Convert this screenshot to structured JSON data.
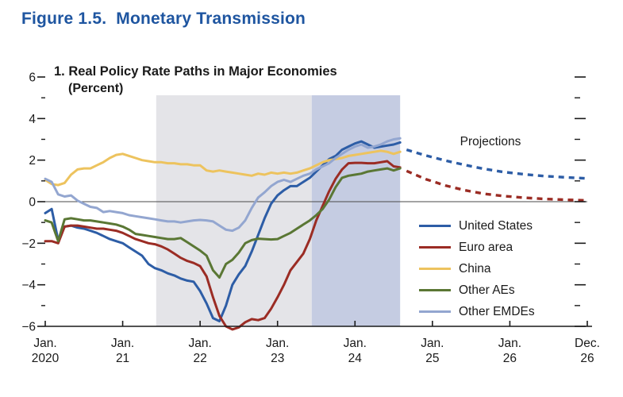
{
  "figure_title": "Figure 1.5.  Monetary Transmission",
  "panel": {
    "title": "1. Real Policy Rate Paths in Major Economies",
    "subtitle": "(Percent)"
  },
  "annotations": {
    "projections": "Projections"
  },
  "colors": {
    "figure_title": "#1e55a0",
    "text": "#1a1a1a",
    "axis": "#1a1a1a",
    "zero_line": "#4a4a4a",
    "band_gray": "#e4e4e8",
    "band_blue": "#c5cce2",
    "united_states": "#2d5da6",
    "euro_area": "#9b2c24",
    "china": "#edc35e",
    "other_aes": "#5a7734",
    "other_emdes": "#93a6d0"
  },
  "chart_data": {
    "type": "line",
    "title": "1. Real Policy Rate Paths in Major Economies",
    "ylabel": "Percent",
    "ylim": [
      -6,
      6
    ],
    "grid": false,
    "zero_line": true,
    "legend_position": "lower right",
    "y_major_ticks": [
      6,
      4,
      2,
      0,
      -2,
      -4,
      -6
    ],
    "y_minor_ticks": [
      5,
      3,
      1,
      -1,
      -3,
      -5
    ],
    "x_tick_labels": [
      [
        "Jan.",
        "2020"
      ],
      [
        "Jan.",
        "21"
      ],
      [
        "Jan.",
        "22"
      ],
      [
        "Jan.",
        "23"
      ],
      [
        "Jan.",
        "24"
      ],
      [
        "Jan.",
        "25"
      ],
      [
        "Jan.",
        "26"
      ],
      [
        "Dec.",
        "26"
      ]
    ],
    "x_months_span": 83,
    "shaded_bands": [
      {
        "from_month": 17.2,
        "to_month": 41.3,
        "color_key": "band_gray"
      },
      {
        "from_month": 41.3,
        "to_month": 55.0,
        "color_key": "band_blue"
      }
    ],
    "series": [
      {
        "name": "United States",
        "color_key": "united_states",
        "style": "solid",
        "start_month": 0,
        "values": [
          -0.55,
          -0.35,
          -1.85,
          -1.2,
          -1.15,
          -1.25,
          -1.3,
          -1.4,
          -1.5,
          -1.65,
          -1.8,
          -1.9,
          -2.0,
          -2.2,
          -2.4,
          -2.6,
          -3.0,
          -3.2,
          -3.3,
          -3.45,
          -3.55,
          -3.7,
          -3.8,
          -3.85,
          -4.3,
          -4.9,
          -5.6,
          -5.75,
          -5.0,
          -4.0,
          -3.5,
          -3.1,
          -2.4,
          -1.6,
          -0.8,
          -0.1,
          0.3,
          0.55,
          0.75,
          0.75,
          0.95,
          1.15,
          1.45,
          1.75,
          2.05,
          2.2,
          2.5,
          2.65,
          2.8,
          2.9,
          2.75,
          2.6,
          2.65,
          2.7,
          2.75,
          2.85
        ]
      },
      {
        "name": "Euro area",
        "color_key": "euro_area",
        "style": "solid",
        "start_month": 0,
        "values": [
          -1.9,
          -1.9,
          -2.0,
          -1.2,
          -1.15,
          -1.15,
          -1.2,
          -1.25,
          -1.3,
          -1.3,
          -1.35,
          -1.4,
          -1.5,
          -1.65,
          -1.8,
          -1.9,
          -2.0,
          -2.05,
          -2.15,
          -2.3,
          -2.5,
          -2.7,
          -2.85,
          -2.95,
          -3.1,
          -3.6,
          -4.6,
          -5.5,
          -6.0,
          -6.15,
          -6.05,
          -5.8,
          -5.65,
          -5.7,
          -5.6,
          -5.15,
          -4.6,
          -4.0,
          -3.3,
          -2.9,
          -2.5,
          -1.8,
          -0.9,
          -0.2,
          0.5,
          1.1,
          1.55,
          1.85,
          1.87,
          1.87,
          1.85,
          1.85,
          1.9,
          1.95,
          1.7,
          1.65
        ]
      },
      {
        "name": "China",
        "color_key": "china",
        "style": "solid",
        "start_month": 0,
        "values": [
          1.05,
          0.85,
          0.8,
          0.9,
          1.3,
          1.55,
          1.6,
          1.6,
          1.75,
          1.9,
          2.1,
          2.25,
          2.3,
          2.2,
          2.1,
          2.0,
          1.95,
          1.9,
          1.9,
          1.85,
          1.85,
          1.8,
          1.8,
          1.75,
          1.75,
          1.5,
          1.45,
          1.5,
          1.45,
          1.4,
          1.35,
          1.3,
          1.25,
          1.35,
          1.3,
          1.4,
          1.35,
          1.4,
          1.35,
          1.4,
          1.5,
          1.6,
          1.75,
          1.9,
          2.0,
          2.05,
          2.1,
          2.2,
          2.25,
          2.3,
          2.35,
          2.4,
          2.45,
          2.4,
          2.3,
          2.4
        ]
      },
      {
        "name": "Other AEs",
        "color_key": "other_aes",
        "style": "solid",
        "start_month": 0,
        "values": [
          -0.9,
          -1.0,
          -1.9,
          -0.85,
          -0.8,
          -0.85,
          -0.9,
          -0.9,
          -0.95,
          -1.0,
          -1.05,
          -1.1,
          -1.2,
          -1.35,
          -1.55,
          -1.6,
          -1.65,
          -1.7,
          -1.75,
          -1.8,
          -1.8,
          -1.75,
          -1.95,
          -2.15,
          -2.35,
          -2.6,
          -3.3,
          -3.65,
          -3.0,
          -2.8,
          -2.45,
          -2.0,
          -1.85,
          -1.78,
          -1.8,
          -1.82,
          -1.8,
          -1.65,
          -1.5,
          -1.3,
          -1.1,
          -0.9,
          -0.65,
          -0.35,
          0.1,
          0.7,
          1.15,
          1.25,
          1.3,
          1.35,
          1.45,
          1.5,
          1.55,
          1.6,
          1.5,
          1.6
        ]
      },
      {
        "name": "Other EMDEs",
        "color_key": "other_emdes",
        "style": "solid",
        "start_month": 0,
        "values": [
          1.1,
          0.95,
          0.35,
          0.25,
          0.3,
          0.05,
          -0.1,
          -0.25,
          -0.3,
          -0.5,
          -0.45,
          -0.5,
          -0.55,
          -0.65,
          -0.7,
          -0.75,
          -0.8,
          -0.85,
          -0.9,
          -0.95,
          -0.95,
          -1.0,
          -0.95,
          -0.9,
          -0.88,
          -0.9,
          -0.95,
          -1.15,
          -1.35,
          -1.4,
          -1.25,
          -0.9,
          -0.3,
          0.2,
          0.45,
          0.75,
          0.95,
          1.05,
          0.95,
          1.1,
          1.25,
          1.35,
          1.55,
          1.7,
          1.85,
          2.1,
          2.3,
          2.5,
          2.65,
          2.75,
          2.6,
          2.65,
          2.75,
          2.9,
          3.0,
          3.05
        ]
      },
      {
        "name": "United States projection",
        "color_key": "united_states",
        "style": "dashed",
        "months": [
          56,
          59,
          62,
          65,
          68,
          71,
          74,
          77,
          80,
          83
        ],
        "values": [
          2.5,
          2.22,
          1.98,
          1.77,
          1.58,
          1.43,
          1.32,
          1.23,
          1.17,
          1.12
        ]
      },
      {
        "name": "Euro area projection",
        "color_key": "euro_area",
        "style": "dashed",
        "months": [
          56,
          59,
          62,
          65,
          68,
          71,
          74,
          77,
          80,
          83
        ],
        "values": [
          1.48,
          1.08,
          0.78,
          0.55,
          0.38,
          0.27,
          0.19,
          0.13,
          0.09,
          0.06
        ]
      }
    ],
    "legend": [
      "United States",
      "Euro area",
      "China",
      "Other AEs",
      "Other EMDEs"
    ]
  }
}
